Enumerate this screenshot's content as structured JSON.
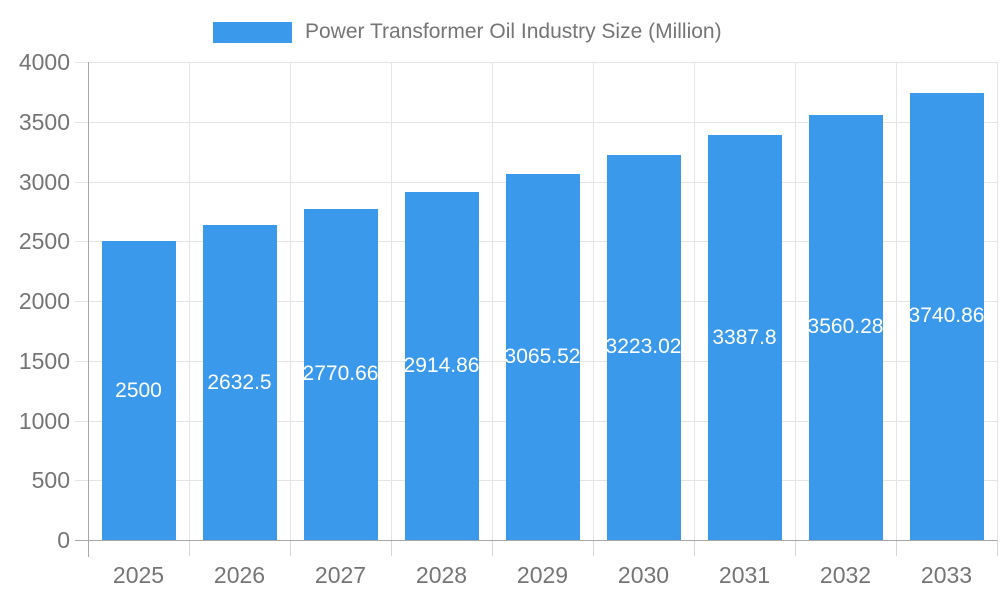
{
  "legend": {
    "position": "top"
  },
  "colors": {
    "bar": "#3B99EC",
    "axis_text": "#757575",
    "gridline": "#E4E4E4",
    "axis_line": "#A8A8A8",
    "x_tick": "#D6D6D6",
    "value_label": "#FFFFFF",
    "background": "#FFFFFF"
  },
  "chart_data": {
    "type": "bar",
    "title": "Power Transformer Oil Industry Size (Million)",
    "categories": [
      "2025",
      "2026",
      "2027",
      "2028",
      "2029",
      "2030",
      "2031",
      "2032",
      "2033"
    ],
    "series": [
      {
        "name": "Power Transformer Oil Industry Size (Million)",
        "values": [
          2500,
          2632.5,
          2770.66,
          2914.86,
          3065.52,
          3223.02,
          3387.8,
          3560.28,
          3740.86
        ]
      }
    ],
    "value_labels_shown": [
      "2500",
      "2632.5",
      "2770.66",
      "2914.86",
      "3065.52",
      "3223.02",
      "3387.8",
      "3560.28",
      "3740.86"
    ],
    "xlabel": "",
    "ylabel": "",
    "ylim": [
      0,
      4000
    ],
    "yticks": [
      0,
      500,
      1000,
      1500,
      2000,
      2500,
      3000,
      3500,
      4000
    ],
    "grid": true,
    "legend_position": "top",
    "value_label_position": "center-of-bar"
  }
}
